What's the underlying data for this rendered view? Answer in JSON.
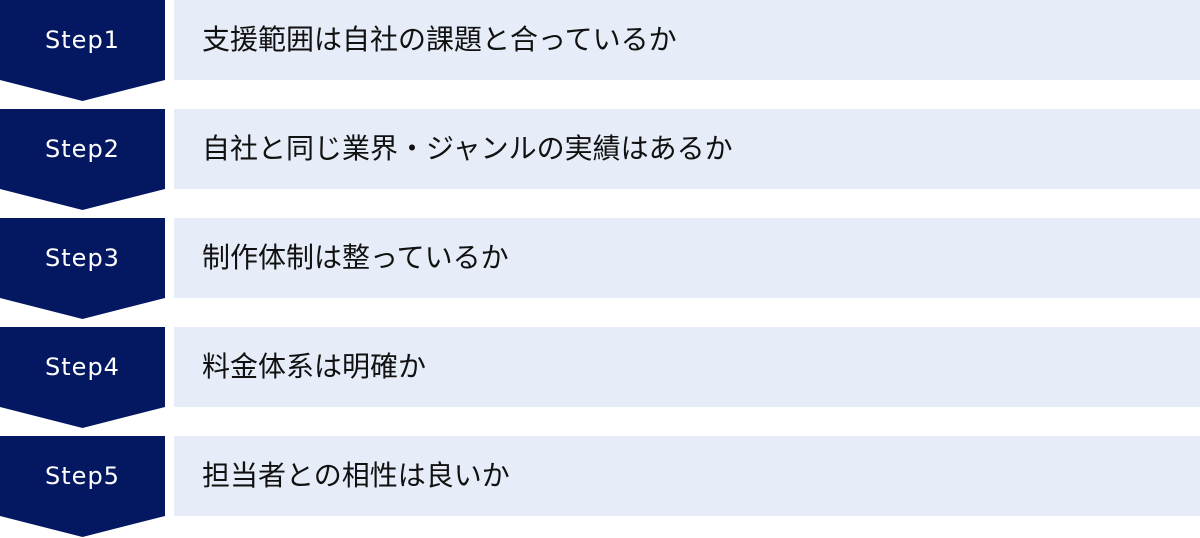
{
  "steps": [
    {
      "label": "Step1",
      "text": "支援範囲は自社の課題と合っているか"
    },
    {
      "label": "Step2",
      "text": "自社と同じ業界・ジャンルの実績はあるか"
    },
    {
      "label": "Step3",
      "text": "制作体制は整っているか"
    },
    {
      "label": "Step4",
      "text": "料金体系は明確か"
    },
    {
      "label": "Step5",
      "text": "担当者との相性は良いか"
    }
  ],
  "colors": {
    "step": "#041862",
    "box": "#e6ecf8"
  }
}
